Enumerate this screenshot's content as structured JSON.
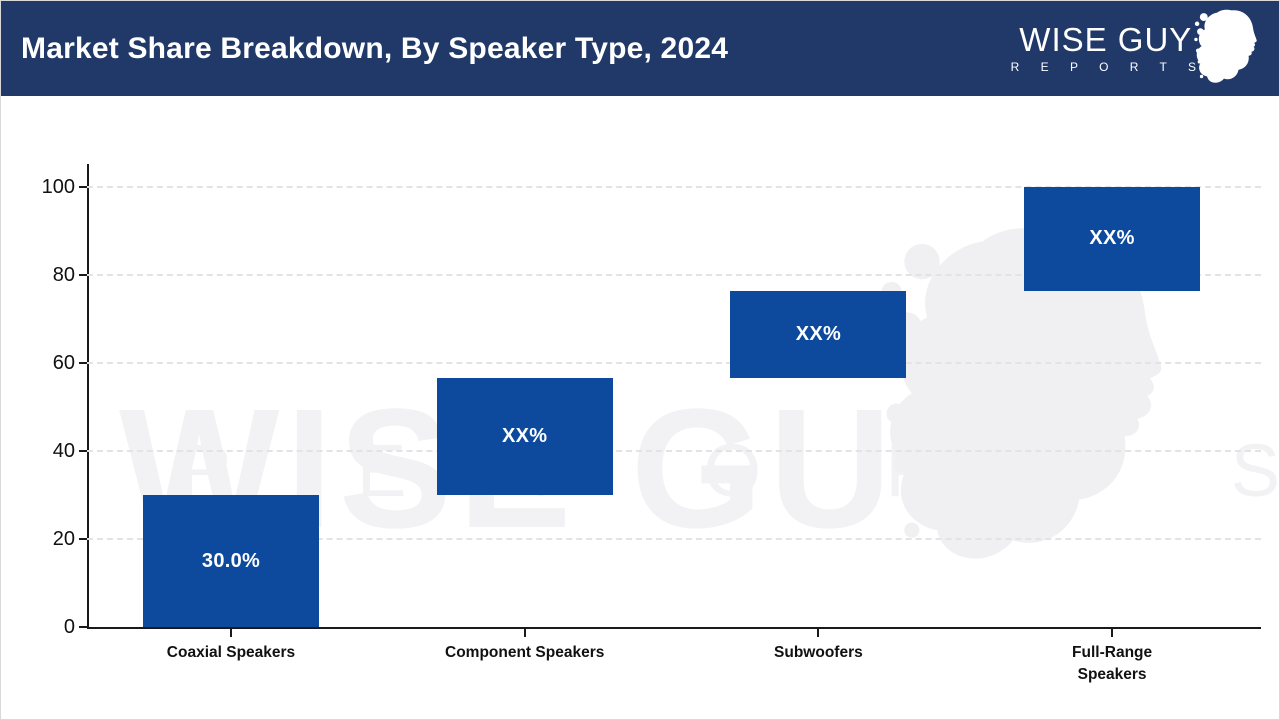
{
  "header": {
    "title": "Market Share Breakdown, By Speaker Type, 2024",
    "bg_color": "#213968",
    "logo": {
      "line1": "WISE GUY",
      "line2": "R E P O R T S"
    }
  },
  "watermark": {
    "line1": "WISE GUY",
    "line2": "R E P O R T S"
  },
  "chart_data": {
    "type": "bar",
    "subtype": "waterfall",
    "title": "Market Share Breakdown, By Speaker Type, 2024",
    "categories": [
      "Coaxial Speakers",
      "Component Speakers",
      "Subwoofers",
      "Full-Range\nSpeakers"
    ],
    "segments": [
      {
        "category": "Coaxial Speakers",
        "start": 0,
        "end": 30,
        "label": "30.0%"
      },
      {
        "category": "Component Speakers",
        "start": 30,
        "end": 56.6,
        "label": "XX%"
      },
      {
        "category": "Subwoofers",
        "start": 56.6,
        "end": 76.4,
        "label": "XX%"
      },
      {
        "category": "Full-Range Speakers",
        "start": 76.4,
        "end": 100,
        "label": "XX%"
      }
    ],
    "ylim": [
      0,
      100
    ],
    "yticks": [
      0,
      20,
      40,
      60,
      80,
      100
    ],
    "grid": "dashed-horizontal",
    "legend": "none",
    "bar_color": "#0D4A9E",
    "bar_label_color": "#FFFFFF",
    "axis_color": "#1A1A1A"
  }
}
